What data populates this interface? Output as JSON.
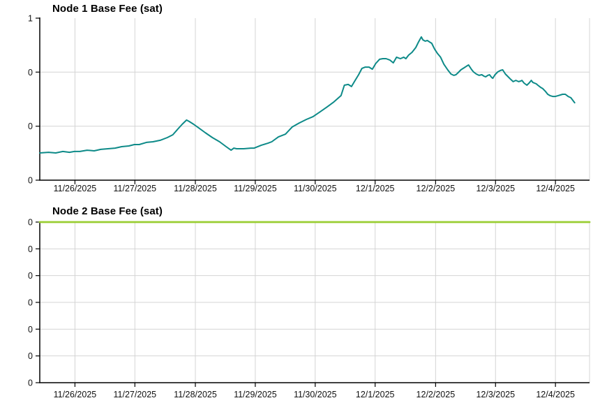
{
  "style": {
    "background": "#ffffff",
    "grid_color": "#d4d4d4",
    "axis_color": "#000000",
    "text_color": "#111111"
  },
  "chart_data": [
    {
      "type": "line",
      "title": "Node 1 Base Fee (sat)",
      "ylim": [
        0,
        1
      ],
      "grid": true,
      "legend": "none",
      "y_ticks": {
        "labels": [
          "1",
          "0",
          "0",
          "0"
        ],
        "values": [
          1,
          0.667,
          0.333,
          0
        ]
      },
      "x_ticks": {
        "labels": [
          "11/26/2025",
          "11/27/2025",
          "11/28/2025",
          "11/29/2025",
          "11/30/2025",
          "12/1/2025",
          "12/2/2025",
          "12/3/2025",
          "12/4/2025"
        ],
        "fractions": [
          0.064,
          0.173,
          0.283,
          0.392,
          0.501,
          0.61,
          0.72,
          0.829,
          0.938
        ]
      },
      "series": [
        {
          "name": "node1-base-fee",
          "color": "#0d8a88",
          "points": [
            [
              0.0,
              0.168
            ],
            [
              0.016,
              0.172
            ],
            [
              0.029,
              0.168
            ],
            [
              0.042,
              0.177
            ],
            [
              0.054,
              0.172
            ],
            [
              0.063,
              0.177
            ],
            [
              0.073,
              0.177
            ],
            [
              0.086,
              0.185
            ],
            [
              0.099,
              0.181
            ],
            [
              0.111,
              0.19
            ],
            [
              0.124,
              0.194
            ],
            [
              0.137,
              0.198
            ],
            [
              0.149,
              0.207
            ],
            [
              0.162,
              0.211
            ],
            [
              0.172,
              0.22
            ],
            [
              0.181,
              0.22
            ],
            [
              0.194,
              0.233
            ],
            [
              0.206,
              0.237
            ],
            [
              0.219,
              0.246
            ],
            [
              0.232,
              0.263
            ],
            [
              0.242,
              0.28
            ],
            [
              0.251,
              0.315
            ],
            [
              0.259,
              0.345
            ],
            [
              0.267,
              0.371
            ],
            [
              0.272,
              0.362
            ],
            [
              0.28,
              0.345
            ],
            [
              0.289,
              0.323
            ],
            [
              0.301,
              0.293
            ],
            [
              0.314,
              0.263
            ],
            [
              0.327,
              0.237
            ],
            [
              0.339,
              0.207
            ],
            [
              0.348,
              0.185
            ],
            [
              0.353,
              0.198
            ],
            [
              0.358,
              0.194
            ],
            [
              0.371,
              0.194
            ],
            [
              0.384,
              0.198
            ],
            [
              0.39,
              0.198
            ],
            [
              0.403,
              0.216
            ],
            [
              0.415,
              0.228
            ],
            [
              0.422,
              0.237
            ],
            [
              0.434,
              0.267
            ],
            [
              0.447,
              0.284
            ],
            [
              0.459,
              0.328
            ],
            [
              0.472,
              0.353
            ],
            [
              0.485,
              0.375
            ],
            [
              0.497,
              0.392
            ],
            [
              0.51,
              0.422
            ],
            [
              0.523,
              0.453
            ],
            [
              0.535,
              0.483
            ],
            [
              0.548,
              0.522
            ],
            [
              0.554,
              0.586
            ],
            [
              0.561,
              0.591
            ],
            [
              0.567,
              0.578
            ],
            [
              0.573,
              0.612
            ],
            [
              0.58,
              0.651
            ],
            [
              0.586,
              0.69
            ],
            [
              0.592,
              0.698
            ],
            [
              0.599,
              0.698
            ],
            [
              0.605,
              0.685
            ],
            [
              0.611,
              0.72
            ],
            [
              0.618,
              0.746
            ],
            [
              0.624,
              0.75
            ],
            [
              0.63,
              0.75
            ],
            [
              0.637,
              0.741
            ],
            [
              0.643,
              0.724
            ],
            [
              0.649,
              0.759
            ],
            [
              0.656,
              0.75
            ],
            [
              0.662,
              0.759
            ],
            [
              0.666,
              0.75
            ],
            [
              0.671,
              0.772
            ],
            [
              0.677,
              0.789
            ],
            [
              0.684,
              0.819
            ],
            [
              0.689,
              0.853
            ],
            [
              0.694,
              0.884
            ],
            [
              0.697,
              0.866
            ],
            [
              0.701,
              0.858
            ],
            [
              0.705,
              0.862
            ],
            [
              0.709,
              0.853
            ],
            [
              0.713,
              0.845
            ],
            [
              0.718,
              0.81
            ],
            [
              0.723,
              0.784
            ],
            [
              0.729,
              0.759
            ],
            [
              0.735,
              0.716
            ],
            [
              0.742,
              0.681
            ],
            [
              0.748,
              0.655
            ],
            [
              0.753,
              0.647
            ],
            [
              0.757,
              0.651
            ],
            [
              0.761,
              0.664
            ],
            [
              0.766,
              0.681
            ],
            [
              0.772,
              0.694
            ],
            [
              0.776,
              0.703
            ],
            [
              0.78,
              0.711
            ],
            [
              0.785,
              0.685
            ],
            [
              0.789,
              0.668
            ],
            [
              0.794,
              0.655
            ],
            [
              0.799,
              0.647
            ],
            [
              0.804,
              0.651
            ],
            [
              0.808,
              0.642
            ],
            [
              0.811,
              0.638
            ],
            [
              0.815,
              0.647
            ],
            [
              0.818,
              0.651
            ],
            [
              0.822,
              0.634
            ],
            [
              0.824,
              0.629
            ],
            [
              0.828,
              0.651
            ],
            [
              0.833,
              0.668
            ],
            [
              0.838,
              0.677
            ],
            [
              0.842,
              0.681
            ],
            [
              0.847,
              0.655
            ],
            [
              0.852,
              0.638
            ],
            [
              0.857,
              0.621
            ],
            [
              0.861,
              0.608
            ],
            [
              0.866,
              0.616
            ],
            [
              0.871,
              0.608
            ],
            [
              0.875,
              0.612
            ],
            [
              0.877,
              0.616
            ],
            [
              0.881,
              0.599
            ],
            [
              0.886,
              0.586
            ],
            [
              0.89,
              0.599
            ],
            [
              0.894,
              0.616
            ],
            [
              0.897,
              0.603
            ],
            [
              0.903,
              0.595
            ],
            [
              0.906,
              0.586
            ],
            [
              0.911,
              0.573
            ],
            [
              0.915,
              0.565
            ],
            [
              0.92,
              0.547
            ],
            [
              0.924,
              0.53
            ],
            [
              0.928,
              0.522
            ],
            [
              0.933,
              0.517
            ],
            [
              0.938,
              0.517
            ],
            [
              0.943,
              0.522
            ],
            [
              0.947,
              0.526
            ],
            [
              0.951,
              0.53
            ],
            [
              0.956,
              0.53
            ],
            [
              0.961,
              0.517
            ],
            [
              0.966,
              0.509
            ],
            [
              0.97,
              0.491
            ],
            [
              0.973,
              0.478
            ]
          ]
        }
      ]
    },
    {
      "type": "line",
      "title": "Node 2 Base Fee (sat)",
      "ylim": [
        0,
        1
      ],
      "grid": true,
      "legend": "none",
      "y_ticks": {
        "labels": [
          "0",
          "0",
          "0",
          "0",
          "0",
          "0",
          "0"
        ],
        "values": [
          1,
          0.8333,
          0.6667,
          0.5,
          0.3333,
          0.1667,
          0
        ]
      },
      "x_ticks": {
        "labels": [
          "11/26/2025",
          "11/27/2025",
          "11/28/2025",
          "11/29/2025",
          "11/30/2025",
          "12/1/2025",
          "12/2/2025",
          "12/3/2025",
          "12/4/2025"
        ],
        "fractions": [
          0.064,
          0.173,
          0.283,
          0.392,
          0.501,
          0.61,
          0.72,
          0.829,
          0.938
        ]
      },
      "series": [
        {
          "name": "node2-base-fee",
          "color": "#9acd32",
          "points": [
            [
              0.0,
              1
            ],
            [
              1.0,
              1
            ]
          ]
        }
      ]
    }
  ]
}
